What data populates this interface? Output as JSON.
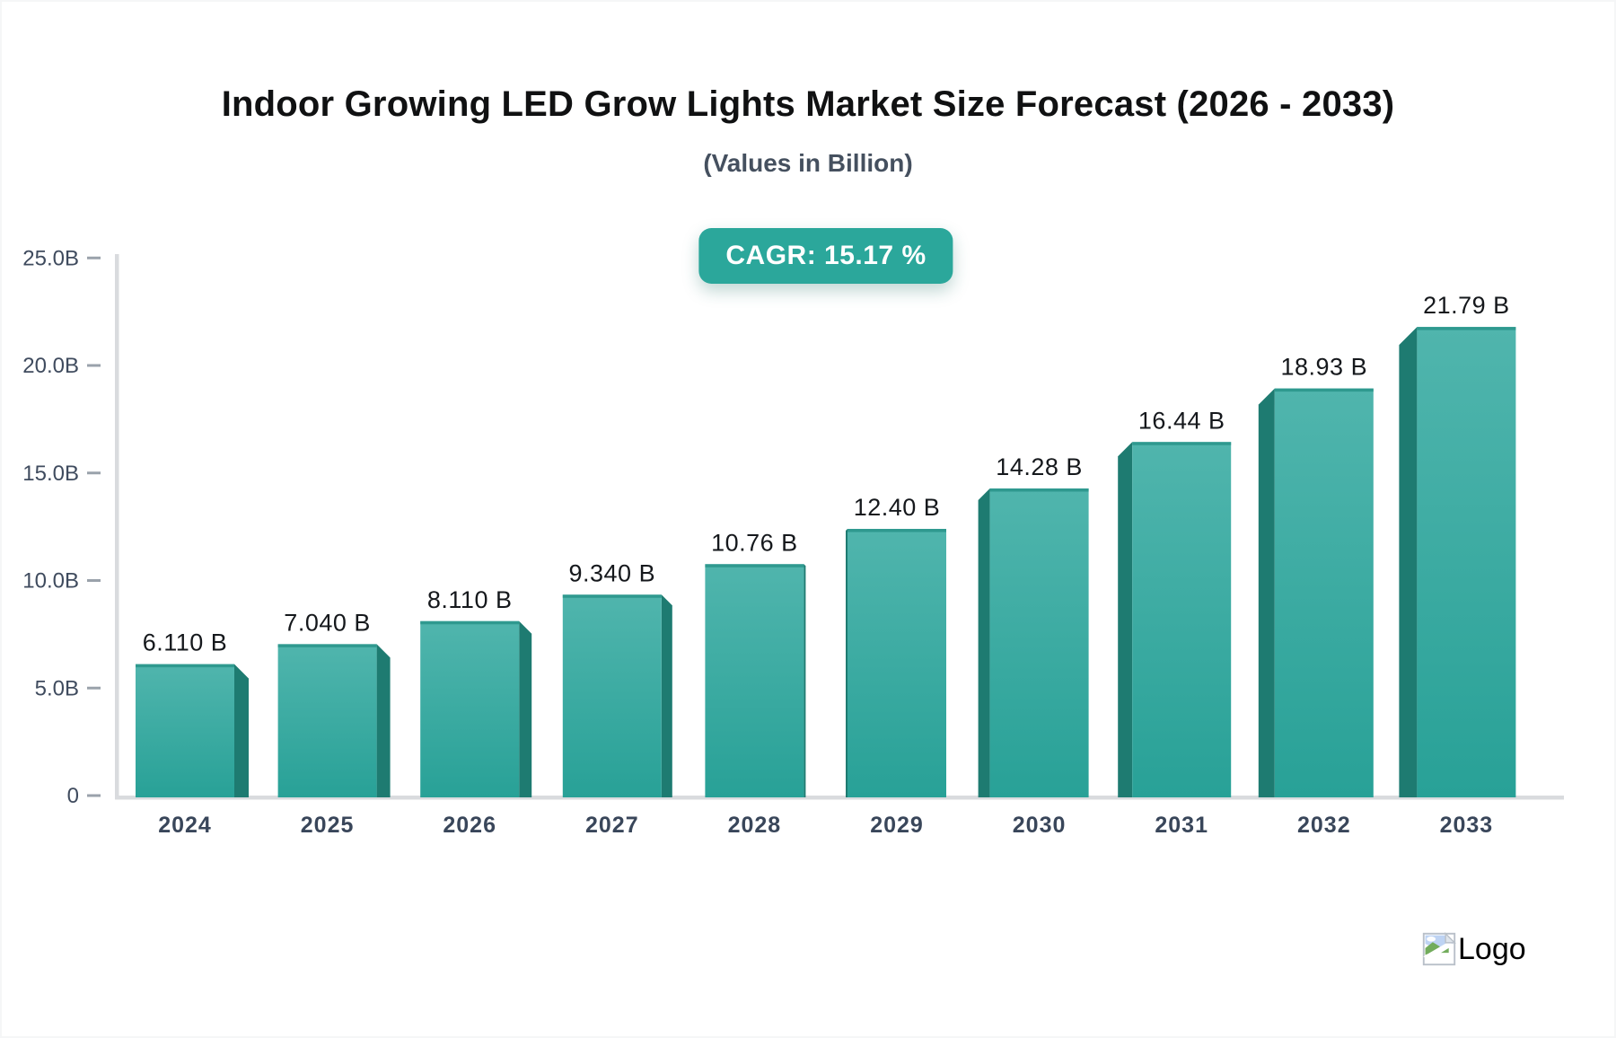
{
  "header": {
    "title": "Indoor Growing LED Grow Lights Market Size Forecast (2026 - 2033)",
    "subtitle": "(Values in Billion)"
  },
  "badge": {
    "label": "CAGR: 15.17 %"
  },
  "chart_data": {
    "type": "bar",
    "title": "Indoor Growing LED Grow Lights Market Size Forecast (2026 - 2033)",
    "subtitle": "(Values in Billion)",
    "cagr_pct": 15.17,
    "categories": [
      "2024",
      "2025",
      "2026",
      "2027",
      "2028",
      "2029",
      "2030",
      "2031",
      "2032",
      "2033"
    ],
    "values": [
      6.11,
      7.04,
      8.11,
      9.34,
      10.76,
      12.4,
      14.28,
      16.44,
      18.93,
      21.79
    ],
    "value_labels": [
      "6.110 B",
      "7.040 B",
      "8.110 B",
      "9.340 B",
      "10.76 B",
      "12.40 B",
      "14.28 B",
      "16.44 B",
      "18.93 B",
      "21.79 B"
    ],
    "y_ticks": [
      {
        "label": "25.0B",
        "value": 25
      },
      {
        "label": "20.0B",
        "value": 20
      },
      {
        "label": "15.0B",
        "value": 15
      },
      {
        "label": "10.0B",
        "value": 10
      },
      {
        "label": "5.0B",
        "value": 5
      },
      {
        "label": "0",
        "value": 0
      }
    ],
    "ylim": [
      0,
      25
    ],
    "xlabel": "",
    "ylabel": "",
    "grid": false,
    "legend": false
  },
  "logo": {
    "text": "Logo"
  },
  "colors": {
    "accent_teal": "#2ba79b",
    "bar_face_top": "#50b5ad",
    "bar_face_bottom": "#28a197",
    "bar_side": "#1e7b71",
    "bar_top_edge": "#2b968c",
    "axis_line": "#d9dbde",
    "tick_dash": "#9aa2ab",
    "tick_text": "#3f4b5e",
    "year_text": "#39465a",
    "value_text": "#15181c",
    "title_text": "#101112",
    "subtitle_text": "#45505f",
    "badge_text": "#ffffff"
  }
}
